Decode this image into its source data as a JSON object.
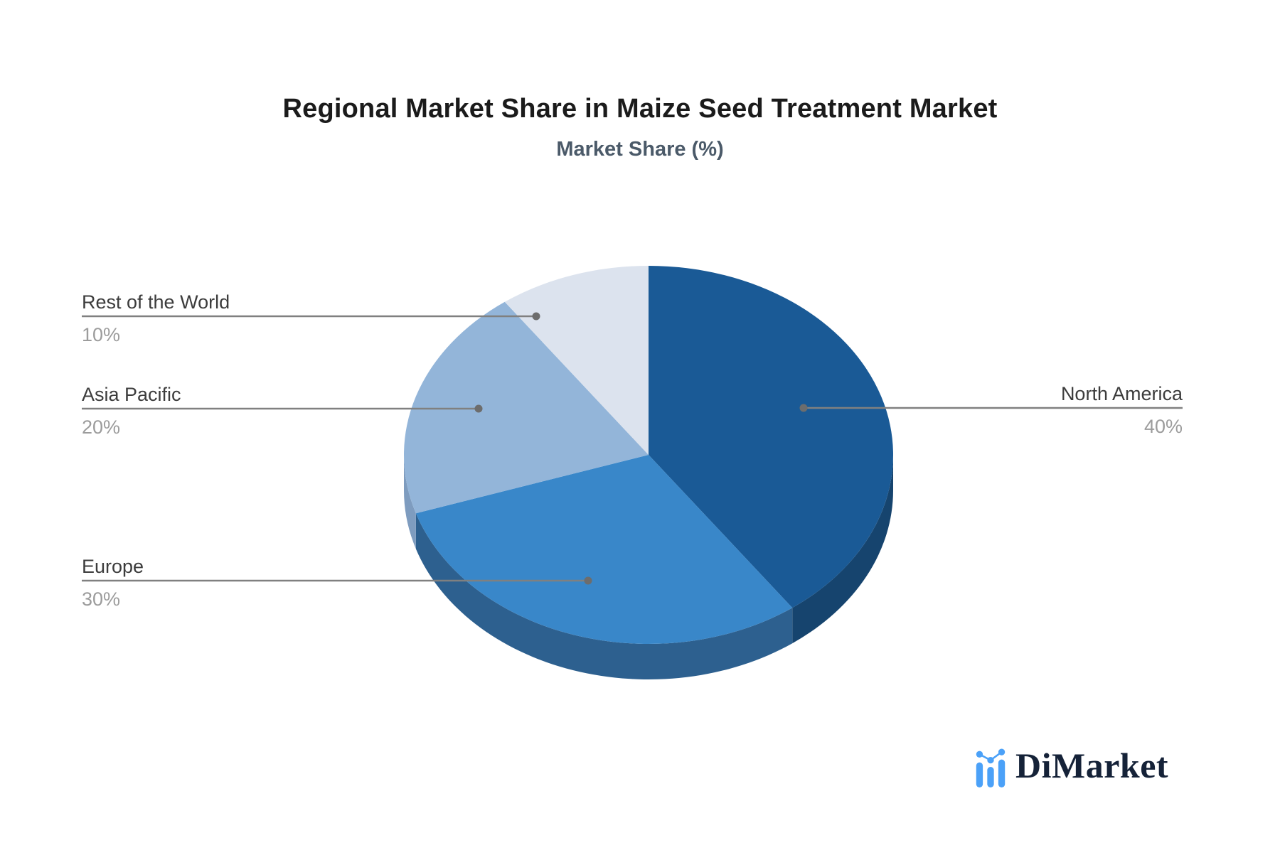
{
  "title": "Regional Market Share in Maize Seed Treatment Market",
  "subtitle": "Market Share (%)",
  "chart_data": {
    "type": "pie",
    "title": "Regional Market Share in Maize Seed Treatment Market",
    "subtitle": "Market Share (%)",
    "unit": "%",
    "effect": "3d",
    "direction": "clockwise",
    "start_angle_deg": 0,
    "slices": [
      {
        "label": "North America",
        "value": 40,
        "pct_label": "40%",
        "color": "#1a5a96",
        "side_color": "#16446e",
        "label_side": "right"
      },
      {
        "label": "Europe",
        "value": 30,
        "pct_label": "30%",
        "color": "#3987c9",
        "side_color": "#2d608f",
        "label_side": "left"
      },
      {
        "label": "Asia Pacific",
        "value": 20,
        "pct_label": "20%",
        "color": "#93b5d9",
        "side_color": "#7e9cbf",
        "label_side": "left"
      },
      {
        "label": "Rest of the World",
        "value": 10,
        "pct_label": "10%",
        "color": "#dce3ee",
        "side_color": "#b9c4d6",
        "label_side": "left"
      }
    ],
    "leader_line_color": "#808080",
    "leader_dot_color": "#6d6d6d"
  },
  "watermark": {
    "brand": "DiMarket",
    "icon": "bar-line-chart-icon",
    "icon_color": "#4ba1f8",
    "text_color": "#152238"
  }
}
